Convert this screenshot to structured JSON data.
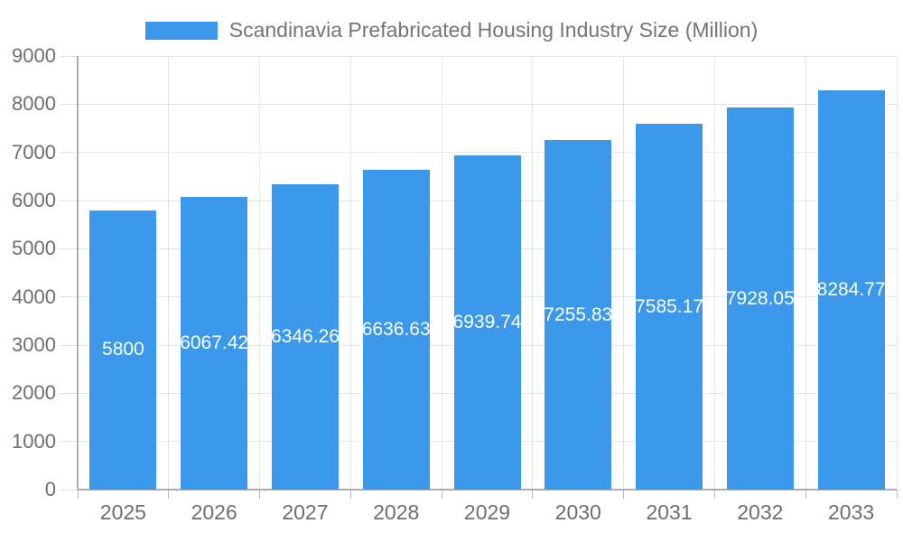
{
  "legend": {
    "label": "Scandinavia Prefabricated Housing Industry Size (Million)"
  },
  "chart_data": {
    "type": "bar",
    "title": "Scandinavia Prefabricated Housing Industry Size (Million)",
    "categories": [
      "2025",
      "2026",
      "2027",
      "2028",
      "2029",
      "2030",
      "2031",
      "2032",
      "2033"
    ],
    "values": [
      5800,
      6067.42,
      6346.26,
      6636.63,
      6939.74,
      7255.83,
      7585.17,
      7928.05,
      8284.77
    ],
    "bar_labels": [
      "5800",
      "6067.42",
      "6346.26",
      "6636.63",
      "6939.74",
      "7255.83",
      "7585.17",
      "7928.05",
      "8284.77"
    ],
    "xlabel": "",
    "ylabel": "",
    "ylim": [
      0,
      9000
    ],
    "ytick_step": 1000,
    "yticks": [
      "0",
      "1000",
      "2000",
      "3000",
      "4000",
      "5000",
      "6000",
      "7000",
      "8000",
      "9000"
    ],
    "grid": true,
    "legend_position": "top",
    "colors": {
      "bar": "#3b98eb",
      "grid": "#e6e6e6",
      "axis_line": "#aeaeae",
      "y_tick": "#e0e0e0",
      "x_tick": "#b8b8b8",
      "axis_label": "#6e6e6e",
      "title": "#757575",
      "bar_label": "#ffffff",
      "background": "#ffffff"
    }
  }
}
